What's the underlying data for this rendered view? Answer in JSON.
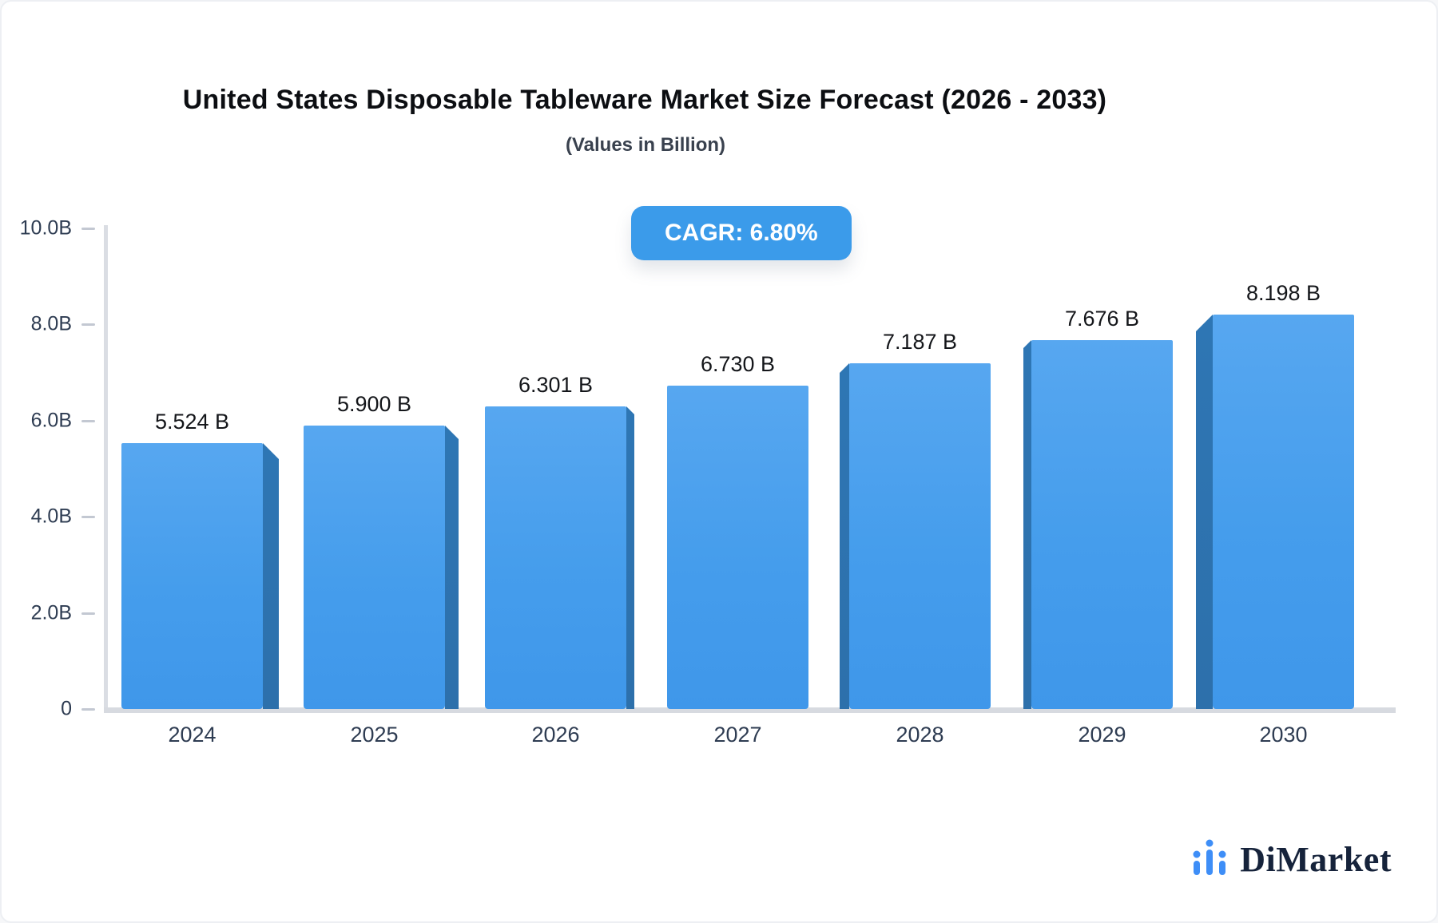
{
  "header": {
    "title": "United States Disposable Tableware Market Size Forecast (2026 - 2033)",
    "subtitle": "(Values in Billion)",
    "cagr_badge": "CAGR: 6.80%"
  },
  "chart_data": {
    "type": "bar",
    "categories": [
      "2024",
      "2025",
      "2026",
      "2027",
      "2028",
      "2029",
      "2030"
    ],
    "values": [
      5.524,
      5.9,
      6.301,
      6.73,
      7.187,
      7.676,
      8.198
    ],
    "value_labels": [
      "5.524 B",
      "5.900 B",
      "6.301 B",
      "6.730 B",
      "7.187 B",
      "7.676 B",
      "8.198 B"
    ],
    "title": "United States Disposable Tableware Market Size Forecast (2026 - 2033)",
    "xlabel": "",
    "ylabel": "",
    "ylim": [
      0,
      10
    ],
    "ytick_values": [
      10,
      8,
      6,
      4,
      2,
      0
    ],
    "ytick_labels": [
      "10.0B",
      "8.0B",
      "6.0B",
      "4.0B",
      "2.0B",
      "0"
    ],
    "grid": false,
    "legend": "none",
    "bar_color": "#459cec",
    "bar_side_color": "#2e76b4"
  },
  "logo": {
    "text": "DiMarket",
    "icon": "bar-chart-icon",
    "icon_color": "#3e8ef7",
    "text_color": "#16233b"
  },
  "colors": {
    "accent_blue": "#3b9bea",
    "axis_gray": "#d7dae0",
    "tick_gray": "#c3c8d2",
    "axis_label": "#2e3c52",
    "value_label": "#14161a",
    "title_color": "#0c0e12"
  }
}
